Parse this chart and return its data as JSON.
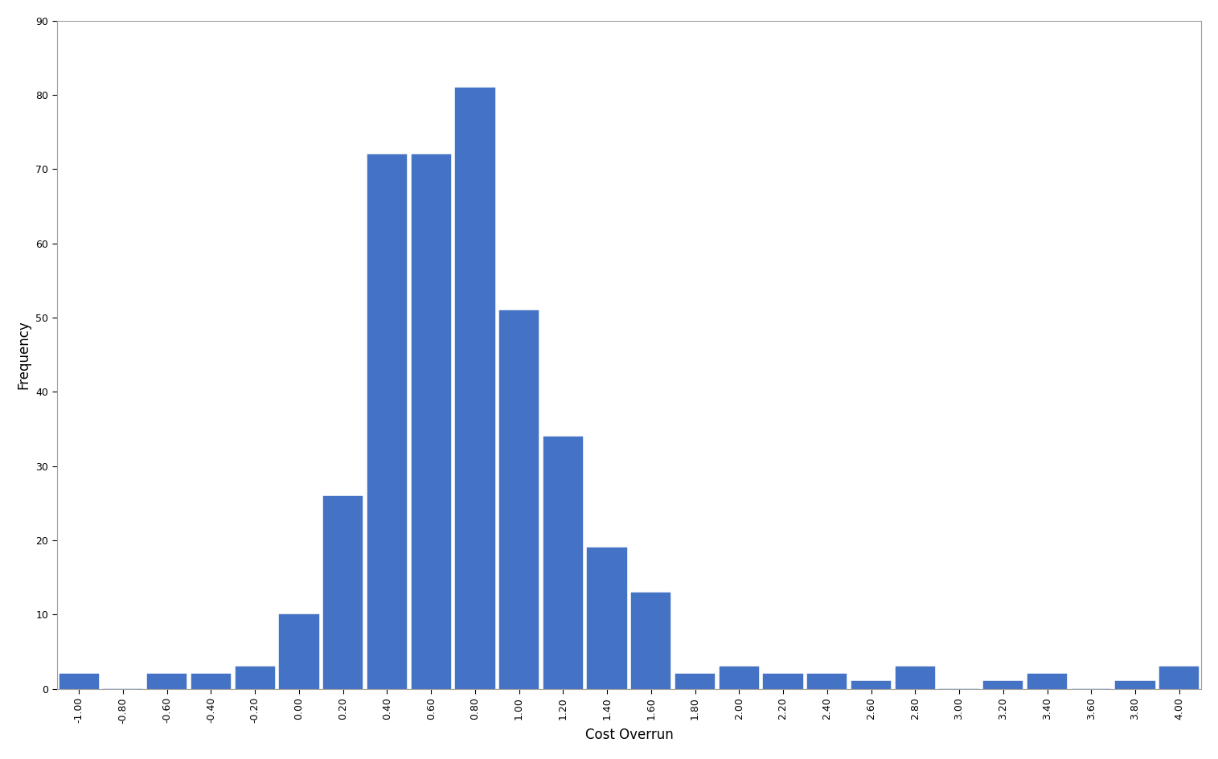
{
  "bin_centers": [
    -1.0,
    -0.8,
    -0.6,
    -0.4,
    -0.2,
    0.0,
    0.2,
    0.4,
    0.6,
    0.8,
    1.0,
    1.2,
    1.4,
    1.6,
    1.8,
    2.0,
    2.2,
    2.4,
    2.6,
    2.8,
    3.0,
    3.2,
    3.4,
    3.6,
    3.8,
    4.0
  ],
  "frequencies": [
    2,
    0,
    2,
    2,
    3,
    10,
    26,
    72,
    72,
    81,
    51,
    34,
    19,
    13,
    2,
    3,
    2,
    2,
    1,
    3,
    0,
    1,
    2,
    0,
    1,
    3
  ],
  "bar_width": 0.18,
  "bar_color": "#4472C4",
  "xlabel": "Cost Overrun",
  "ylabel": "Frequency",
  "xlim": [
    -1.1,
    4.1
  ],
  "ylim": [
    0,
    90
  ],
  "xtick_positions": [
    -1.0,
    -0.8,
    -0.6,
    -0.4,
    -0.2,
    0.0,
    0.2,
    0.4,
    0.6,
    0.8,
    1.0,
    1.2,
    1.4,
    1.6,
    1.8,
    2.0,
    2.2,
    2.4,
    2.6,
    2.8,
    3.0,
    3.2,
    3.4,
    3.6,
    3.8,
    4.0
  ],
  "xtick_labels": [
    "-1.00",
    "-0.80",
    "-0.60",
    "-0.40",
    "-0.20",
    "0.00",
    "0.20",
    "0.40",
    "0.60",
    "0.80",
    "1.00",
    "1.20",
    "1.40",
    "1.60",
    "1.80",
    "2.00",
    "2.20",
    "2.40",
    "2.60",
    "2.80",
    "3.00",
    "3.20",
    "3.40",
    "3.60",
    "3.80",
    "4.00"
  ],
  "ytick_values": [
    0,
    10,
    20,
    30,
    40,
    50,
    60,
    70,
    80,
    90
  ],
  "background_color": "#ffffff",
  "label_fontsize": 12,
  "tick_fontsize": 9,
  "border_color": "#a0a0a0"
}
